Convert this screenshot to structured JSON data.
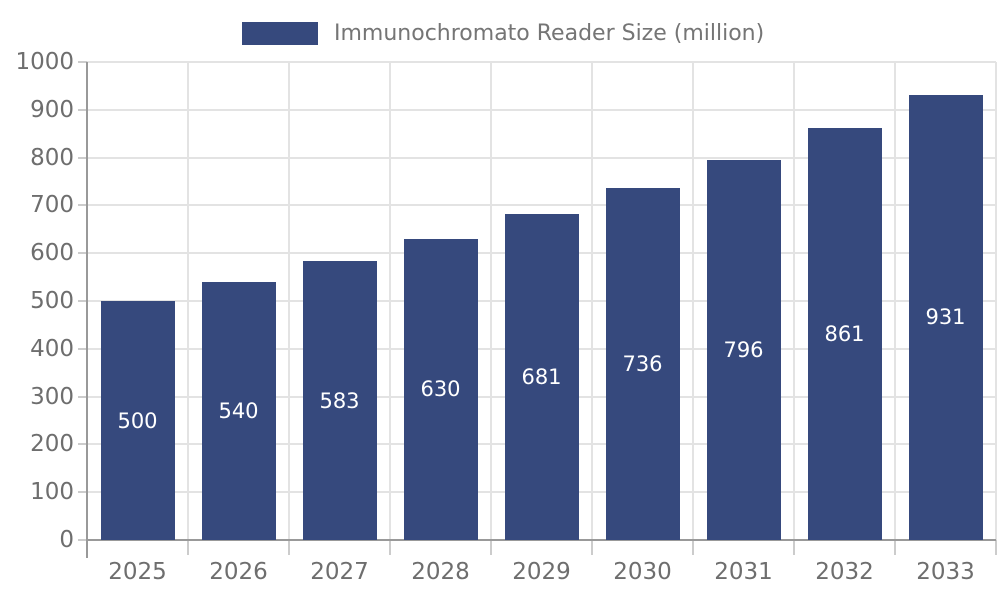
{
  "legend": {
    "label": "Immunochromato Reader Size (million)"
  },
  "colors": {
    "bar": "#36497d",
    "grid": "#e3e3e3",
    "axis": "#999999",
    "tick": "#cccccc",
    "axis_label_text": "#6e6e6e",
    "value_label_text": "#ffffff",
    "legend_text": "#757575",
    "background": "#ffffff"
  },
  "chart_data": {
    "type": "bar",
    "title": "Immunochromato Reader Size (million)",
    "categories": [
      "2025",
      "2026",
      "2027",
      "2028",
      "2029",
      "2030",
      "2031",
      "2032",
      "2033"
    ],
    "values": [
      500,
      540,
      583,
      630,
      681,
      736,
      796,
      861,
      931
    ],
    "bar_value_labels": [
      "500",
      "540",
      "583",
      "630",
      "681",
      "736",
      "796",
      "861",
      "931"
    ],
    "xlabel": "",
    "ylabel": "",
    "ylim": [
      0,
      1000
    ],
    "yticks": [
      0,
      100,
      200,
      300,
      400,
      500,
      600,
      700,
      800,
      900,
      1000
    ],
    "grid": true,
    "legend_position": "top",
    "value_labels_inside_bars": true
  }
}
